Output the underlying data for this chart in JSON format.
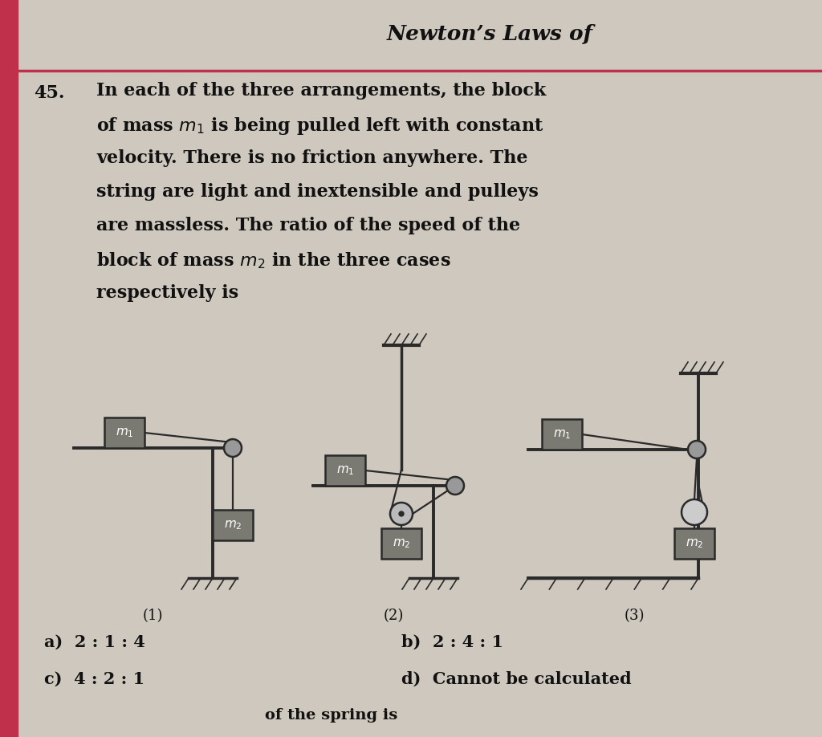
{
  "bg_color": "#cec8be",
  "text_color": "#111111",
  "diagram_color": "#2a2a2a",
  "block_fill": "#7a7a72",
  "title": "Newton’s Laws of",
  "q_num": "45.",
  "lines": [
    "In each of the three arrangements, the block",
    "of mass $m_1$ is being pulled left with constant",
    "velocity. There is no friction anywhere. The",
    "string are light and inextensible and pulleys",
    "are massless. The ratio of the speed of the",
    "block of mass $m_2$ in the three cases",
    "respectively is"
  ],
  "opt_a": "a)  2 : 1 : 4",
  "opt_b": "b)  2 : 4 : 1",
  "opt_c": "c)  4 : 2 : 1",
  "opt_d": "d)  Cannot be calculated",
  "bottom_text": "of the spring is",
  "pink": "#c0304a",
  "label1": "(1)",
  "label2": "(2)",
  "label3": "(3)"
}
